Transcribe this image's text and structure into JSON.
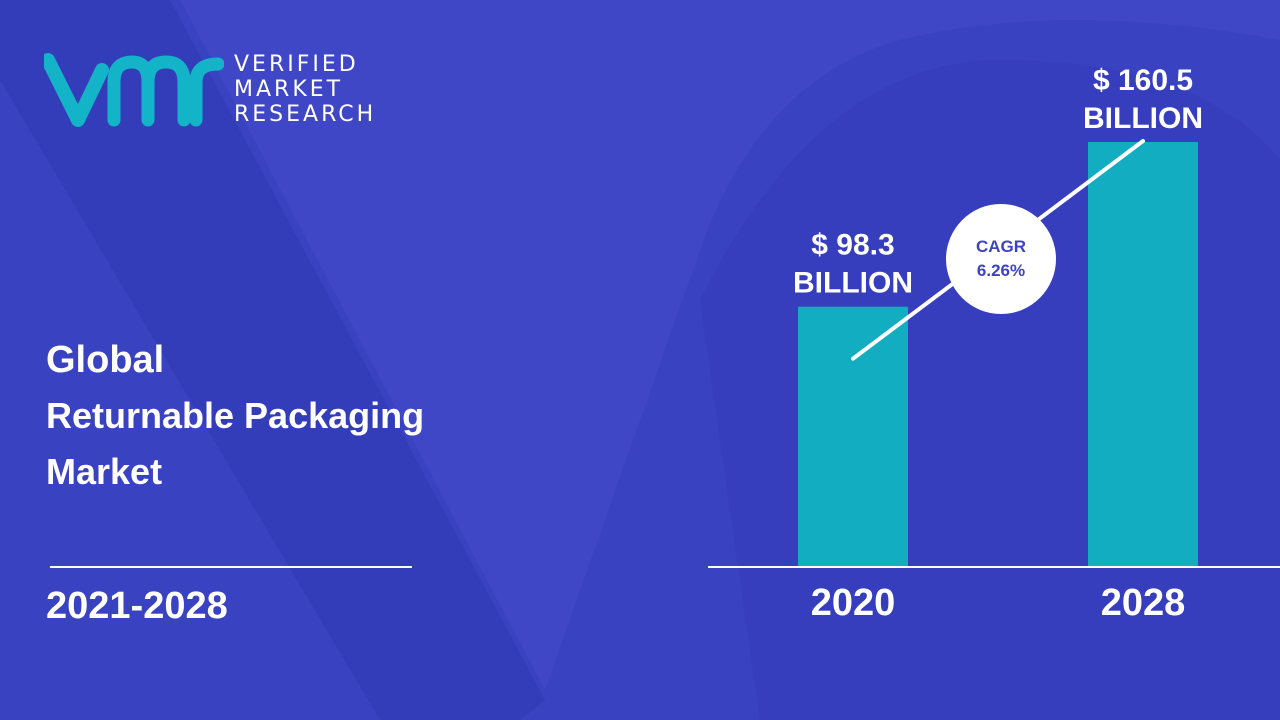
{
  "brand": {
    "logo_icon": "vmr-logo-icon",
    "line1": "VERIFIED",
    "line2": "MARKET",
    "line3": "RESEARCH"
  },
  "title": {
    "line1": "Global",
    "line2": "Returnable Packaging",
    "line3": "Market"
  },
  "period": "2021-2028",
  "cagr": {
    "label": "CAGR",
    "value": "6.26%"
  },
  "colors": {
    "background": "#3f47c7",
    "bar": "#12adc1",
    "text": "#ffffff"
  },
  "chart_data": {
    "type": "bar",
    "categories": [
      "2020",
      "2028"
    ],
    "values": [
      98.3,
      160.5
    ],
    "value_labels": [
      [
        "$ 98.3",
        "BILLION"
      ],
      [
        "$ 160.5",
        "BILLION"
      ]
    ],
    "unit": "Billion USD",
    "cagr": "6.26%"
  }
}
